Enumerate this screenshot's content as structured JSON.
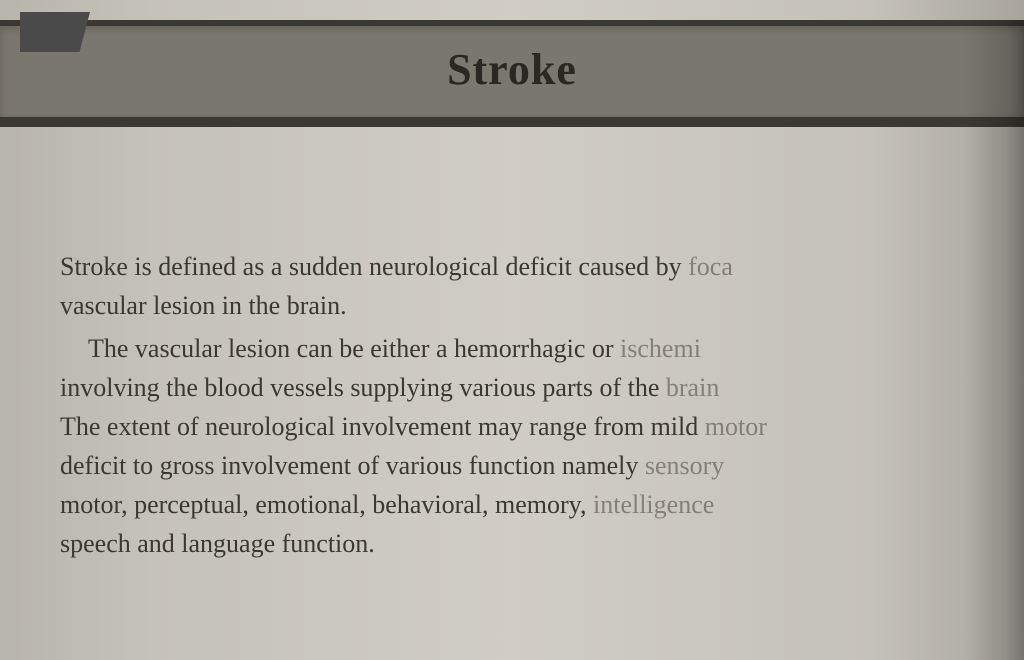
{
  "header": {
    "title": "Stroke"
  },
  "body": {
    "p1_line1": "Stroke is defined as a sudden neurological deficit caused by ",
    "p1_cut1": "foca",
    "p1_line2": "vascular lesion in the brain.",
    "p2_line1": "The vascular lesion can be either a hemorrhagic or ",
    "p2_cut1": "ischemi",
    "p2_line2": "involving the blood vessels supplying various parts of the ",
    "p2_cut2": "brain",
    "p2_line3": "The extent of neurological involvement may range from mild ",
    "p2_cut3": "motor",
    "p2_line4": "deficit to gross involvement of various function namely ",
    "p2_cut4": "sensory",
    "p2_line5": "motor, perceptual, emotional, behavioral, memory, ",
    "p2_cut5": "intelligence",
    "p2_line6": "speech and language function."
  },
  "style": {
    "title_fontsize": 44,
    "body_fontsize": 26,
    "title_color": "#2a2822",
    "body_color": "#3a3832",
    "titlebar_bg": "#7a776e",
    "titlebar_border": "#3a3832",
    "page_bg": "#c5c2b9"
  }
}
